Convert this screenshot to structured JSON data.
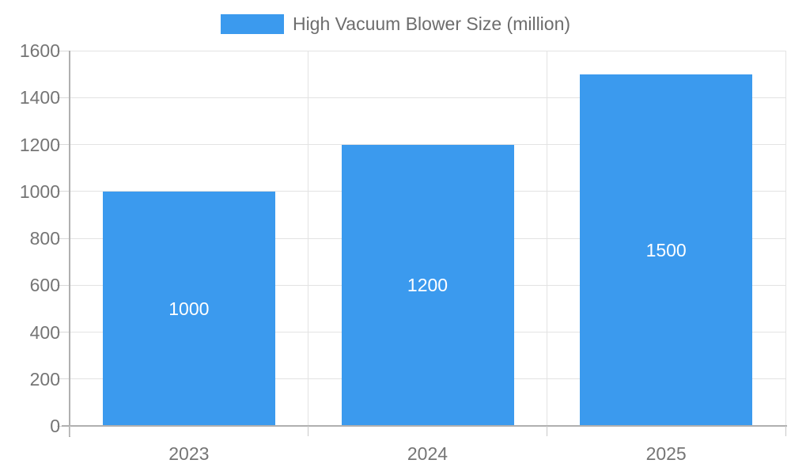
{
  "chart_data": {
    "type": "bar",
    "title": "High Vacuum Blower Size (million)",
    "categories": [
      "2023",
      "2024",
      "2025"
    ],
    "values": [
      1000,
      1200,
      1500
    ],
    "series": [
      {
        "name": "High Vacuum Blower Size (million)",
        "values": [
          1000,
          1200,
          1500
        ]
      }
    ],
    "value_labels": [
      "1000",
      "1200",
      "1500"
    ],
    "xlabel": "",
    "ylabel": "",
    "ylim": [
      0,
      1600
    ],
    "ytick_step": 200,
    "ytick_labels": [
      "0",
      "200",
      "400",
      "600",
      "800",
      "1000",
      "1200",
      "1400",
      "1600"
    ],
    "grid": true,
    "legend_position": "top",
    "colors": {
      "bar": "#3b9aee",
      "value_label_text": "#ffffff",
      "axis_text": "#757575",
      "legend_text": "#6d6d6d",
      "gridline": "#e3e3e3",
      "axis_line": "#b0b0b0"
    }
  }
}
